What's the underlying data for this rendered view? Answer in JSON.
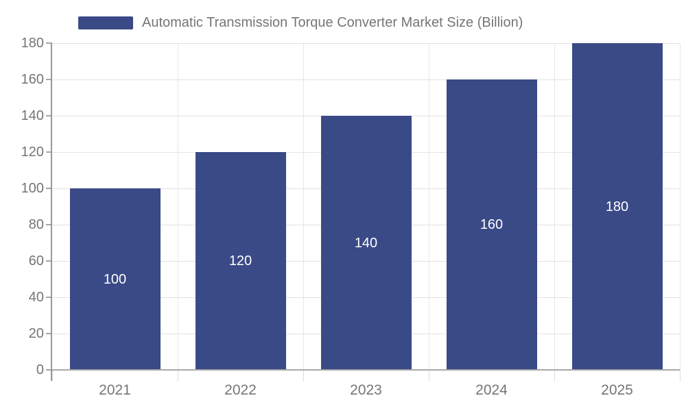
{
  "chart_data": {
    "type": "bar",
    "title": "Automatic Transmission Torque Converter Market Size (Billion)",
    "series_name": "Automatic Transmission Torque Converter Market Size (Billion)",
    "categories": [
      "2021",
      "2022",
      "2023",
      "2024",
      "2025"
    ],
    "values": [
      100,
      120,
      140,
      160,
      180
    ],
    "data_labels": [
      "100",
      "120",
      "140",
      "160",
      "180"
    ],
    "xlabel": "",
    "ylabel": "",
    "ylim": [
      0,
      180
    ],
    "yticks": [
      0,
      20,
      40,
      60,
      80,
      100,
      120,
      140,
      160,
      180
    ],
    "grid": true,
    "legend_position": "top-left",
    "colors": {
      "bar": "#3A4A87",
      "value_label": "#FFFFFF",
      "axis_text": "#757575",
      "gridline": "#E2E2E2",
      "axis_line": "#9B9B9B"
    }
  }
}
